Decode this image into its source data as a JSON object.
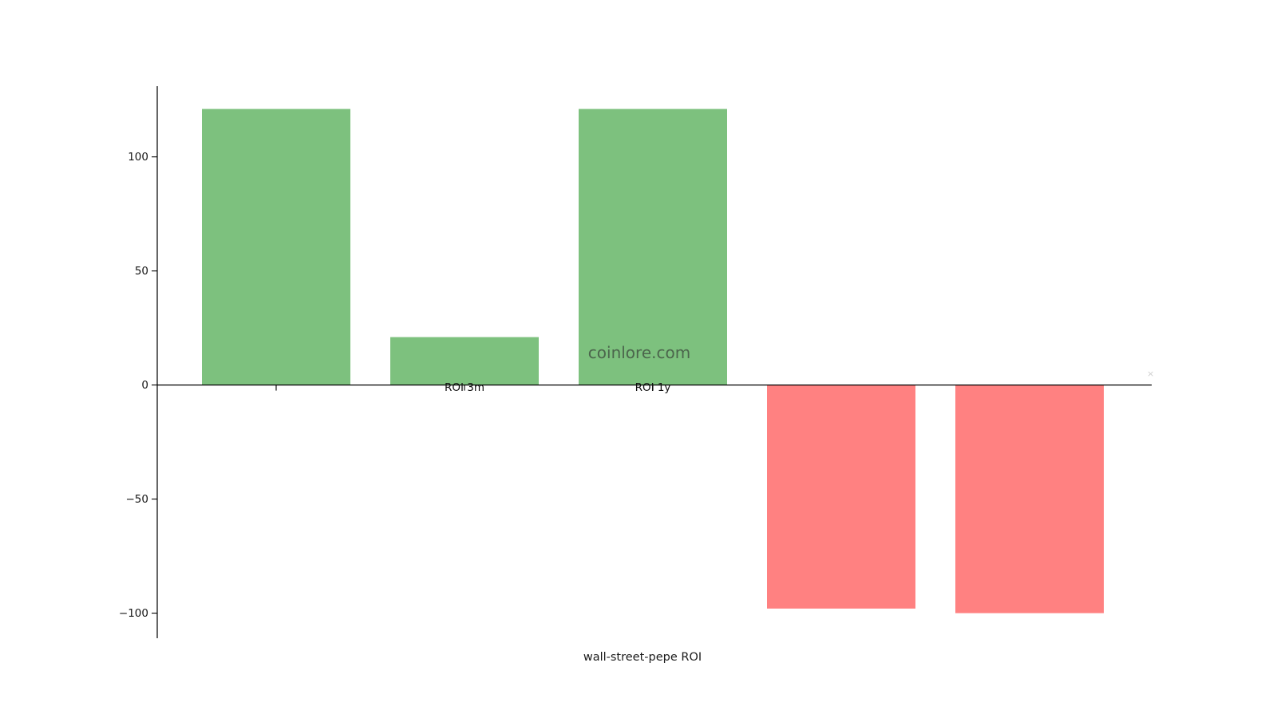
{
  "chart_data": {
    "type": "bar",
    "title": "",
    "xlabel": "wall-street-pepe ROI",
    "ylabel": "",
    "categories": [
      "",
      "ROI 3m",
      "ROI 1y",
      "",
      ""
    ],
    "values": [
      121,
      21,
      121,
      -98,
      -100
    ],
    "yticks": [
      100,
      50,
      0,
      -50,
      -100
    ],
    "ylim": [
      -111,
      131
    ],
    "grid": false,
    "legend": null,
    "positive_color": "#7dc17e",
    "negative_color": "#ff8181",
    "axis_color": "#000000",
    "tick_label_color": "#111111",
    "x_ticks_shown": [
      true,
      true,
      true,
      false,
      false
    ],
    "watermark": "coinlore.com",
    "end_mark": "×"
  }
}
